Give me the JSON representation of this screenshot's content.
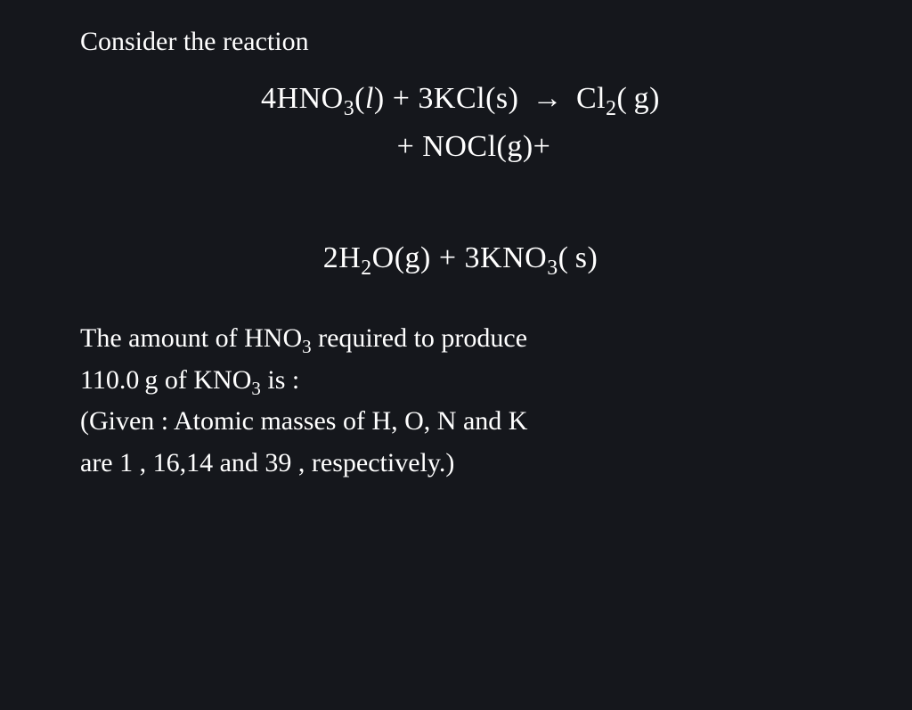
{
  "colors": {
    "background": "#15171c",
    "text": "#ffffff"
  },
  "typography": {
    "body_fontsize": 30,
    "equation_fontsize": 34,
    "font_family": "Georgia, 'Times New Roman', serif"
  },
  "intro": "Consider the reaction",
  "equation": {
    "line1_html": "4HNO<sub>3</sub>(<i>l</i>)&nbsp;+&nbsp;3KCl(s)&nbsp;<span class='arrow'>→</span>&nbsp;Cl<sub>2</sub>(&thinsp;g)",
    "line2_html": "+&nbsp;NOCl(g)+",
    "line3_html": "2H<sub>2</sub>O(g)&nbsp;+&nbsp;3KNO<sub>3</sub>(&thinsp;s)"
  },
  "question": {
    "line1_html": "The amount of HNO<sub>3</sub> required to produce",
    "line2_html": "110.0&thinsp;g of KNO<sub>3</sub> is :",
    "line3_html": "(Given : Atomic masses of H, O, N and K",
    "line4_html": "are 1 , 16,14 and 39 , respectively.)"
  }
}
